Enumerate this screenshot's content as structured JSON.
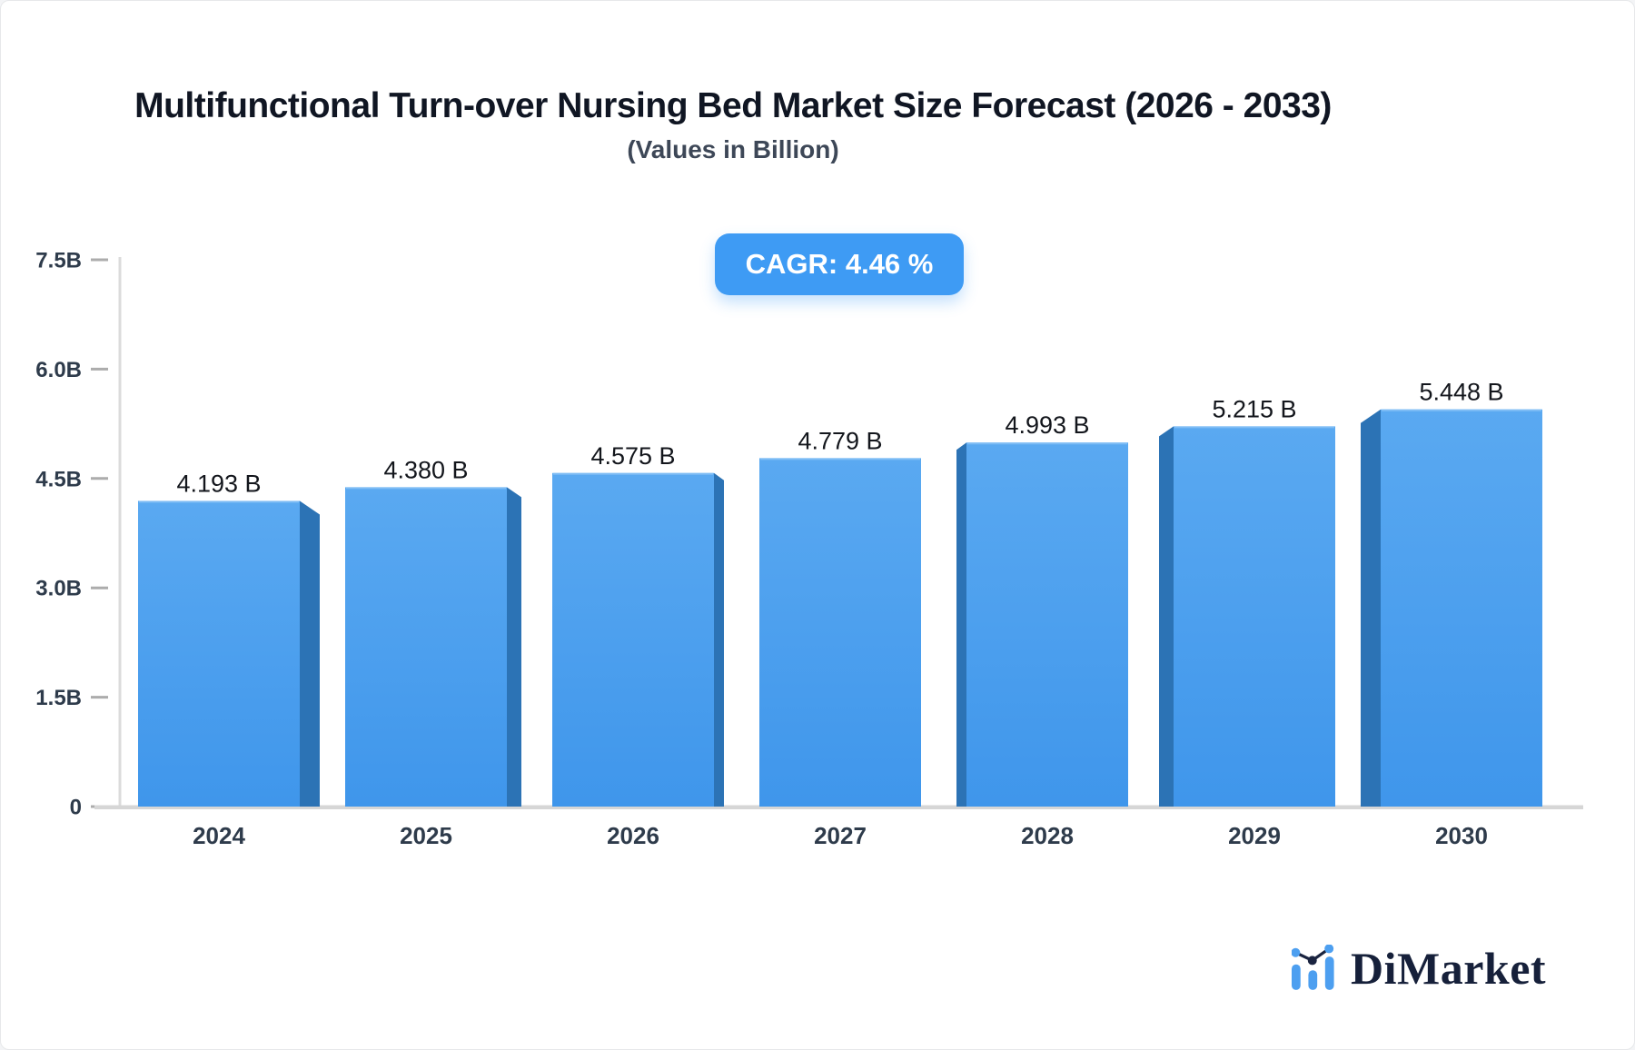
{
  "page": {
    "title": "Multifunctional Turn-over Nursing Bed Market Size Forecast (2026 - 2033)",
    "subtitle": "(Values in Billion)"
  },
  "badge": {
    "label": "CAGR: 4.46 %"
  },
  "chart_data": {
    "type": "bar",
    "title": "Multifunctional Turn-over Nursing Bed Market Size Forecast (2026 - 2033)",
    "subtitle": "(Values in Billion)",
    "categories": [
      "2024",
      "2025",
      "2026",
      "2027",
      "2028",
      "2029",
      "2030"
    ],
    "values": [
      4.193,
      4.38,
      4.575,
      4.779,
      4.993,
      5.215,
      5.448
    ],
    "value_labels": [
      "4.193 B",
      "4.380 B",
      "4.575 B",
      "4.779 B",
      "4.993 B",
      "5.215 B",
      "5.448 B"
    ],
    "cagr_percent": 4.46,
    "ylim": [
      0,
      7.5
    ],
    "yticks": [
      {
        "value": 0,
        "label": "0"
      },
      {
        "value": 1.5,
        "label": "1.5B"
      },
      {
        "value": 3,
        "label": "3.0B"
      },
      {
        "value": 4.5,
        "label": "4.5B"
      },
      {
        "value": 6,
        "label": "6.0B"
      },
      {
        "value": 7.5,
        "label": "7.5B"
      }
    ],
    "grid": false,
    "legend": false,
    "bar_style": "3d-extruded",
    "xlabel": "",
    "ylabel": ""
  },
  "branding": {
    "name": "DiMarket",
    "icon": "mini-bar-line-chart-logo"
  },
  "colors": {
    "badge_bg": "#3E9BF4",
    "badge_text": "#FFFFFF",
    "bar_face_top": "#5AA9F1",
    "bar_face_bottom": "#3F96EB",
    "bar_side": "#2C73B5",
    "bar_top_highlight": "#7FBDF5",
    "axis_line": "#DBDBDB",
    "baseline": "#D6D6D6",
    "tick_dash": "#ACACAC",
    "axis_label": "#2E3B4B",
    "value_label": "#13161C",
    "title": "#101623",
    "subtitle": "#3D4757",
    "logo_text": "#16203A",
    "logo_blue": "#4D9FF0",
    "logo_navy": "#1A2440"
  }
}
